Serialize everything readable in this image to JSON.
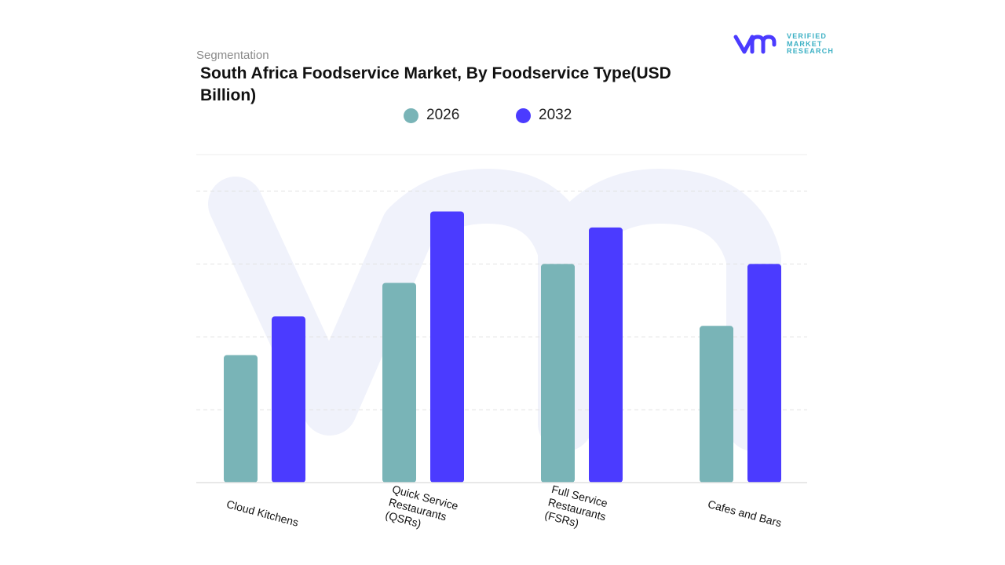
{
  "header": {
    "segmentation_label": "Segmentation",
    "logo_text": [
      "VERIFIED",
      "MARKET",
      "RESEARCH"
    ]
  },
  "colors": {
    "2026": "#79b4b7",
    "2032": "#4b3bff",
    "grid": "#e2e2e2",
    "watermark": "#f0f2fb"
  },
  "chart_data": {
    "type": "bar",
    "title": "South Africa Foodservice Market, By Foodservice Type(USD Billion)",
    "xlabel": "",
    "ylabel": "",
    "categories": [
      "Cloud Kitchens",
      "Quick Service Restaurants (QSRs)",
      "Full Service Restaurants (FSRs)",
      "Cafes and Bars"
    ],
    "series": [
      {
        "name": "2026",
        "values": [
          1.75,
          2.74,
          3.0,
          2.15
        ]
      },
      {
        "name": "2032",
        "values": [
          2.28,
          3.72,
          3.5,
          3.0
        ]
      }
    ],
    "ylim": [
      0,
      4.5
    ],
    "grid": true,
    "y_tick_labels_shown": false,
    "legend_placement": "top-center"
  }
}
